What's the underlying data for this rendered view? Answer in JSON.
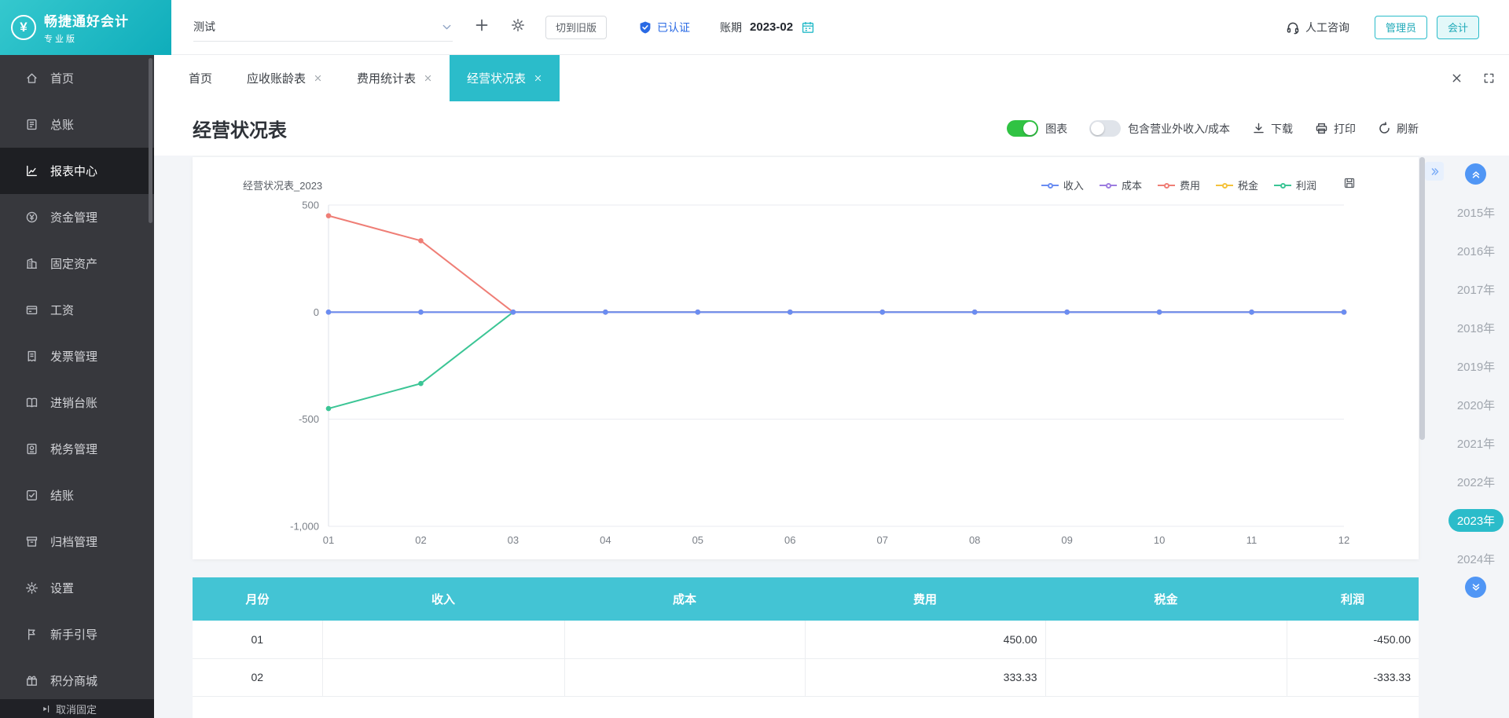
{
  "header": {
    "logo_title": "畅捷通好会计",
    "logo_subtitle": "专业版",
    "logo_symbol": "¥",
    "company_select": "测试",
    "switch_old_version": "切到旧版",
    "certified_badge": "已认证",
    "period_label": "账期",
    "period_value": "2023-02",
    "support_label": "人工咨询",
    "admin_button": "管理员",
    "role_button": "会计"
  },
  "sidebar": {
    "items": [
      {
        "label": "首页",
        "icon": "home-icon",
        "active": false
      },
      {
        "label": "总账",
        "icon": "ledger-icon",
        "active": false
      },
      {
        "label": "报表中心",
        "icon": "report-icon",
        "active": true
      },
      {
        "label": "资金管理",
        "icon": "fund-icon",
        "active": false
      },
      {
        "label": "固定资产",
        "icon": "asset-icon",
        "active": false
      },
      {
        "label": "工资",
        "icon": "payroll-icon",
        "active": false
      },
      {
        "label": "发票管理",
        "icon": "invoice-icon",
        "active": false
      },
      {
        "label": "进销台账",
        "icon": "inout-ledger-icon",
        "active": false
      },
      {
        "label": "税务管理",
        "icon": "tax-icon",
        "active": false
      },
      {
        "label": "结账",
        "icon": "closing-icon",
        "active": false
      },
      {
        "label": "归档管理",
        "icon": "archive-icon",
        "active": false
      },
      {
        "label": "设置",
        "icon": "gear-icon",
        "active": false
      },
      {
        "label": "新手引导",
        "icon": "guide-icon",
        "active": false
      },
      {
        "label": "积分商城",
        "icon": "gift-icon",
        "active": false
      }
    ],
    "unpin_label": "取消固定"
  },
  "tabs": {
    "items": [
      {
        "label": "首页",
        "closable": false,
        "active": false
      },
      {
        "label": "应收账龄表",
        "closable": true,
        "active": false
      },
      {
        "label": "费用统计表",
        "closable": true,
        "active": false
      },
      {
        "label": "经营状况表",
        "closable": true,
        "active": true
      }
    ]
  },
  "toolbar": {
    "title": "经营状况表",
    "chart_toggle_label": "图表",
    "chart_toggle_on": true,
    "include_toggle_label": "包含营业外收入/成本",
    "include_toggle_on": false,
    "download_label": "下载",
    "print_label": "打印",
    "refresh_label": "刷新"
  },
  "chart_data": {
    "type": "line",
    "title": "经营状况表_2023",
    "categories": [
      "01",
      "02",
      "03",
      "04",
      "05",
      "06",
      "07",
      "08",
      "09",
      "10",
      "11",
      "12"
    ],
    "series": [
      {
        "name": "收入",
        "color": "#6a8df2",
        "values": [
          0,
          0,
          0,
          0,
          0,
          0,
          0,
          0,
          0,
          0,
          0,
          0
        ]
      },
      {
        "name": "成本",
        "color": "#9d7ce0",
        "values": [
          0,
          0,
          0,
          0,
          0,
          0,
          0,
          0,
          0,
          0,
          0,
          0
        ]
      },
      {
        "name": "费用",
        "color": "#ef7e76",
        "values": [
          450,
          333.33,
          0,
          0,
          0,
          0,
          0,
          0,
          0,
          0,
          0,
          0
        ]
      },
      {
        "name": "税金",
        "color": "#f4c23c",
        "values": [
          0,
          0,
          0,
          0,
          0,
          0,
          0,
          0,
          0,
          0,
          0,
          0
        ]
      },
      {
        "name": "利润",
        "color": "#3bc595",
        "values": [
          -450,
          -333.33,
          0,
          0,
          0,
          0,
          0,
          0,
          0,
          0,
          0,
          0
        ]
      }
    ],
    "ylim": [
      -1000,
      500
    ],
    "yticks": [
      500,
      0,
      -500,
      -1000
    ],
    "ytick_labels": [
      "500",
      "0",
      "-500",
      "-1,000"
    ],
    "legend_position": "top-right",
    "grid": true
  },
  "table": {
    "headers": [
      "月份",
      "收入",
      "成本",
      "费用",
      "税金",
      "利润"
    ],
    "rows": [
      [
        "01",
        "",
        "",
        "450.00",
        "",
        "-450.00"
      ],
      [
        "02",
        "",
        "",
        "333.33",
        "",
        "-333.33"
      ]
    ]
  },
  "year_panel": {
    "years": [
      "2015年",
      "2016年",
      "2017年",
      "2018年",
      "2019年",
      "2020年",
      "2021年",
      "2022年",
      "2023年",
      "2024年"
    ],
    "selected": "2023年"
  },
  "colors": {
    "brand_teal": "#2bbcca",
    "table_header_teal": "#43c4d4",
    "toggle_on_green": "#30c343",
    "certified_blue": "#2a6ae4",
    "rail_button_blue": "#5096f5",
    "sidebar_bg": "#37383d"
  }
}
